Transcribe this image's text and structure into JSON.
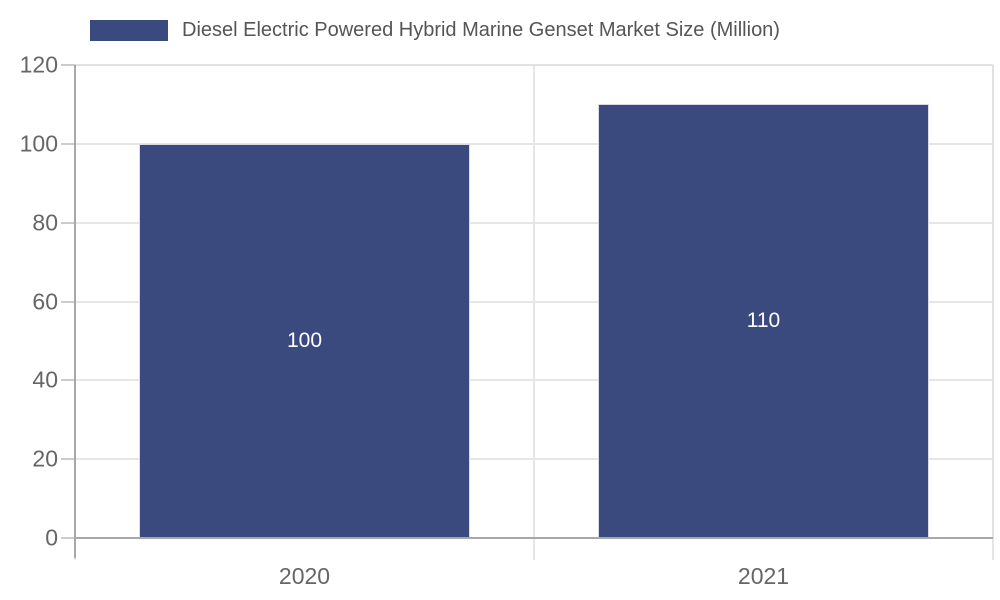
{
  "legend": {
    "label": "Diesel Electric Powered Hybrid Marine Genset Market Size (Million)",
    "swatch_color": "#3A4A7F"
  },
  "chart_data": {
    "type": "bar",
    "title": "",
    "xlabel": "",
    "ylabel": "",
    "categories": [
      "2020",
      "2021"
    ],
    "series": [
      {
        "name": "Diesel Electric Powered Hybrid Marine Genset Market Size (Million)",
        "values": [
          100,
          110
        ]
      }
    ],
    "data_labels": [
      "100",
      "110"
    ],
    "ylim": [
      0,
      120
    ],
    "yticks": [
      0,
      20,
      40,
      60,
      80,
      100,
      120
    ],
    "grid": true,
    "legend_position": "top-left",
    "bar_color": "#3A4A7F",
    "bar_border_color": "#d9dce6",
    "data_label_color": "#ffffff"
  },
  "colors": {
    "background": "#ffffff",
    "gridline": "#e6e6e6",
    "plot_border": "#e2e2e2",
    "axis": "#a8a8a8",
    "tick": "#cccccc",
    "axis_label": "#666666",
    "legend_text": "#555555"
  }
}
